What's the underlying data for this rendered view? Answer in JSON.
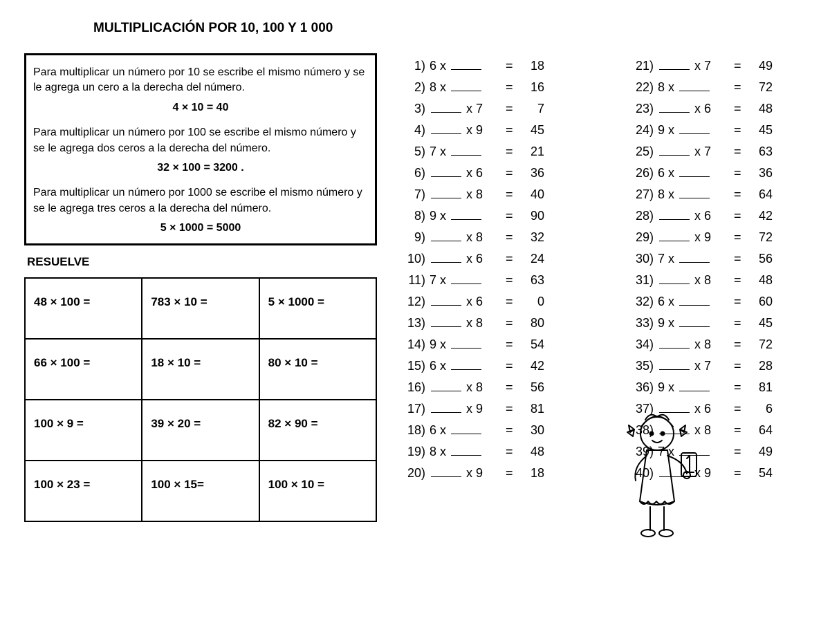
{
  "title": "MULTIPLICACIÓN POR 10, 100  Y 1 000",
  "info": {
    "p1": "Para multiplicar un número por 10 se escribe el mismo número y se le agrega un cero a la derecha del número.",
    "eq1": "4 × 10 = 40",
    "p2": "Para multiplicar un número por 100 se escribe el mismo número y se le agrega dos ceros a la derecha del número.",
    "eq2": "32 × 100 = 3200 .",
    "p3": "Para multiplicar un número por 1000 se escribe el mismo número y se le agrega tres ceros a la derecha del número.",
    "eq3": "5 × 1000 = 5000"
  },
  "resuelve_label": "RESUELVE",
  "resuelve": {
    "rows": [
      [
        "48 × 100 =",
        "783 × 10 =",
        "5 × 1000 ="
      ],
      [
        "66 × 100 =",
        "18 × 10 =",
        "80 × 10 ="
      ],
      [
        "100 × 9 =",
        "39 × 20 =",
        "82 × 90 ="
      ],
      [
        "100 × 23 =",
        "100 × 15=",
        "100 × 10 ="
      ]
    ]
  },
  "problems_left": [
    {
      "n": "1)",
      "pre": "6 x",
      "post": "",
      "ans": "18"
    },
    {
      "n": "2)",
      "pre": "8 x",
      "post": "",
      "ans": "16"
    },
    {
      "n": "3)",
      "pre": "",
      "post": "x 7",
      "ans": "7"
    },
    {
      "n": "4)",
      "pre": "",
      "post": "x 9",
      "ans": "45"
    },
    {
      "n": "5)",
      "pre": "7 x",
      "post": "",
      "ans": "21"
    },
    {
      "n": "6)",
      "pre": "",
      "post": "x 6",
      "ans": "36"
    },
    {
      "n": "7)",
      "pre": "",
      "post": "x 8",
      "ans": "40"
    },
    {
      "n": "8)",
      "pre": "9 x",
      "post": "",
      "ans": "90"
    },
    {
      "n": "9)",
      "pre": "",
      "post": "x 8",
      "ans": "32"
    },
    {
      "n": "10)",
      "pre": "",
      "post": "x 6",
      "ans": "24"
    },
    {
      "n": "11)",
      "pre": "7 x",
      "post": "",
      "ans": "63"
    },
    {
      "n": "12)",
      "pre": "",
      "post": "x 6",
      "ans": "0"
    },
    {
      "n": "13)",
      "pre": "",
      "post": "x 8",
      "ans": "80"
    },
    {
      "n": "14)",
      "pre": "9 x",
      "post": "",
      "ans": "54"
    },
    {
      "n": "15)",
      "pre": "6 x",
      "post": "",
      "ans": "42"
    },
    {
      "n": "16)",
      "pre": "",
      "post": "x 8",
      "ans": "56"
    },
    {
      "n": "17)",
      "pre": "",
      "post": "x 9",
      "ans": "81"
    },
    {
      "n": "18)",
      "pre": "6 x",
      "post": "",
      "ans": "30"
    },
    {
      "n": "19)",
      "pre": "8 x",
      "post": "",
      "ans": "48"
    },
    {
      "n": "20)",
      "pre": "",
      "post": "x 9",
      "ans": "18"
    }
  ],
  "problems_right": [
    {
      "n": "21)",
      "pre": "",
      "post": "x 7",
      "ans": "49"
    },
    {
      "n": "22)",
      "pre": "8 x",
      "post": "",
      "ans": "72"
    },
    {
      "n": "23)",
      "pre": "",
      "post": "x 6",
      "ans": "48"
    },
    {
      "n": "24)",
      "pre": "9 x",
      "post": "",
      "ans": "45"
    },
    {
      "n": "25)",
      "pre": "",
      "post": "x 7",
      "ans": "63"
    },
    {
      "n": "26)",
      "pre": "6 x",
      "post": "",
      "ans": "36"
    },
    {
      "n": "27)",
      "pre": "8 x",
      "post": "",
      "ans": "64"
    },
    {
      "n": "28)",
      "pre": "",
      "post": "x 6",
      "ans": "42"
    },
    {
      "n": "29)",
      "pre": "",
      "post": "x 9",
      "ans": "72"
    },
    {
      "n": "30)",
      "pre": "7 x",
      "post": "",
      "ans": "56"
    },
    {
      "n": "31)",
      "pre": "",
      "post": "x 8",
      "ans": "48"
    },
    {
      "n": "32)",
      "pre": "6 x",
      "post": "",
      "ans": "60"
    },
    {
      "n": "33)",
      "pre": "9 x",
      "post": "",
      "ans": "45"
    },
    {
      "n": "34)",
      "pre": "",
      "post": "x 8",
      "ans": "72"
    },
    {
      "n": "35)",
      "pre": "",
      "post": "x 7",
      "ans": "28"
    },
    {
      "n": "36)",
      "pre": "9 x",
      "post": "",
      "ans": "81"
    },
    {
      "n": "37)",
      "pre": "",
      "post": "x 6",
      "ans": "6"
    },
    {
      "n": "38)",
      "pre": "",
      "post": "x 8",
      "ans": "64"
    },
    {
      "n": "39)",
      "pre": "7 x",
      "post": "",
      "ans": "49"
    },
    {
      "n": "40)",
      "pre": "",
      "post": "x 9",
      "ans": "54"
    }
  ],
  "equals": "=",
  "colors": {
    "bg": "#ffffff",
    "fg": "#000000",
    "border": "#000000"
  }
}
